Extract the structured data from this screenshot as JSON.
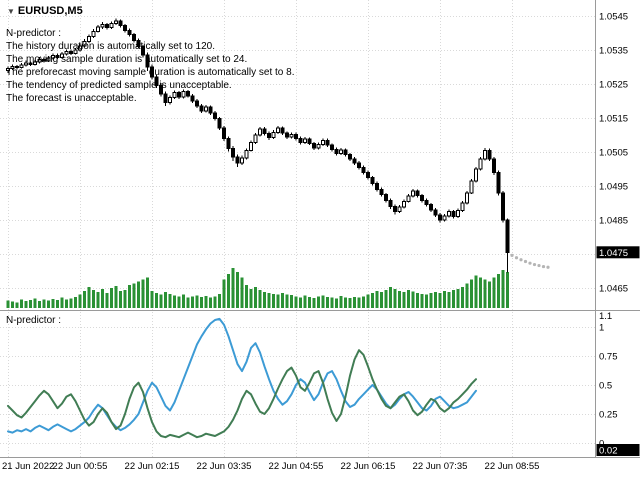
{
  "window": {
    "bg": "#ffffff"
  },
  "symbol": {
    "label": "EURUSD,M5",
    "dropdown_icon": "▼"
  },
  "comments": [
    "N-predictor :",
    "The history duration is automatically set to 120.",
    "The moving sample duration is automatically set to 24.",
    "The preforecast moving sample duration is automatically set to 8.",
    "The tendency of predicted sample is unacceptable.",
    "The forecast is unacceptable."
  ],
  "price_axis": {
    "labels": [
      "1.0545",
      "1.0535",
      "1.0525",
      "1.0515",
      "1.0505",
      "1.0495",
      "1.0485",
      "1.0465"
    ],
    "badge": "1.0475"
  },
  "time_axis": {
    "labels": [
      "21 Jun 2022",
      "22 Jun 00:55",
      "22 Jun 02:15",
      "22 Jun 03:35",
      "22 Jun 04:55",
      "22 Jun 06:15",
      "22 Jun 07:35",
      "22 Jun 08:55"
    ]
  },
  "indicator_panel": {
    "title": "N-predictor :",
    "scale_labels": [
      "1.1",
      "1",
      "0.75",
      "0.5",
      "0.25",
      "0"
    ],
    "badge": "0.02"
  },
  "colors": {
    "background": "#ffffff",
    "grid": "#d9d9d9",
    "candle_outline": "#000000",
    "bull_body": "#ffffff",
    "bear_body": "#000000",
    "volume": "#2a9134",
    "line_blue": "#3d9bd5",
    "line_green": "#417d54",
    "forecast_dot": "#b5b5b5",
    "badge_bg": "#000000",
    "badge_text": "#ffffff",
    "separator": "#9a9a9a",
    "text": "#000000"
  },
  "chart_data": [
    {
      "type": "candlestick",
      "title": "EURUSD,M5",
      "timeframe": "M5",
      "x_labels": [
        "21 Jun 2022",
        "22 Jun 00:55",
        "22 Jun 02:15",
        "22 Jun 03:35",
        "22 Jun 04:55",
        "22 Jun 06:15",
        "22 Jun 07:35",
        "22 Jun 08:55"
      ],
      "ylim": [
        1.046,
        1.055
      ],
      "yticks": [
        1.0545,
        1.0535,
        1.0525,
        1.0515,
        1.0505,
        1.0495,
        1.0485,
        1.0475,
        1.0465
      ],
      "current_price": 1.0475,
      "price_base": 1.04,
      "pip": 0.0001,
      "ohlc_pips": [
        [
          129.0,
          130.1,
          128.3,
          129.5
        ],
        [
          129.5,
          130.8,
          129.1,
          130.2
        ],
        [
          130.2,
          130.6,
          129.2,
          129.8
        ],
        [
          129.8,
          131.2,
          129.5,
          130.6
        ],
        [
          130.6,
          131.9,
          130.2,
          131.2
        ],
        [
          131.2,
          131.6,
          130.3,
          130.8
        ],
        [
          130.8,
          132.1,
          130.5,
          131.5
        ],
        [
          131.5,
          132.9,
          131.1,
          132.2
        ],
        [
          132.2,
          132.7,
          131.3,
          131.8
        ],
        [
          131.8,
          133.2,
          131.4,
          132.6
        ],
        [
          132.6,
          134.0,
          132.2,
          133.4
        ],
        [
          133.4,
          133.9,
          132.3,
          132.8
        ],
        [
          132.8,
          134.4,
          132.5,
          133.8
        ],
        [
          133.8,
          135.2,
          133.4,
          134.6
        ],
        [
          134.6,
          135.1,
          133.5,
          134.0
        ],
        [
          134.0,
          135.6,
          133.7,
          135.0
        ],
        [
          135.0,
          136.8,
          134.6,
          136.2
        ],
        [
          136.2,
          138.2,
          135.9,
          137.5
        ],
        [
          137.5,
          139.6,
          137.1,
          139.0
        ],
        [
          139.0,
          141.2,
          138.6,
          140.5
        ],
        [
          140.5,
          142.4,
          140.1,
          141.8
        ],
        [
          141.8,
          143.3,
          141.2,
          142.5
        ],
        [
          142.5,
          143.0,
          141.0,
          141.6
        ],
        [
          141.6,
          143.4,
          141.2,
          142.8
        ],
        [
          142.8,
          144.2,
          142.3,
          143.5
        ],
        [
          143.5,
          143.9,
          141.6,
          142.2
        ],
        [
          142.2,
          142.7,
          140.2,
          140.8
        ],
        [
          140.8,
          141.3,
          138.9,
          139.5
        ],
        [
          139.5,
          140.0,
          137.2,
          137.8
        ],
        [
          137.8,
          138.4,
          135.4,
          136.0
        ],
        [
          136.0,
          136.5,
          132.8,
          133.5
        ],
        [
          133.5,
          134.2,
          128.8,
          130.0
        ],
        [
          130.0,
          130.8,
          126.3,
          127.0
        ],
        [
          127.0,
          127.8,
          123.8,
          124.5
        ],
        [
          124.5,
          125.3,
          121.3,
          122.0
        ],
        [
          122.0,
          122.8,
          118.6,
          119.5
        ],
        [
          119.5,
          121.6,
          119.0,
          121.0
        ],
        [
          121.0,
          123.1,
          120.6,
          122.5
        ],
        [
          122.5,
          123.0,
          120.6,
          121.2
        ],
        [
          121.2,
          123.4,
          120.8,
          122.8
        ],
        [
          122.8,
          123.3,
          121.0,
          121.5
        ],
        [
          121.5,
          122.0,
          119.4,
          120.0
        ],
        [
          120.0,
          120.6,
          117.9,
          118.5
        ],
        [
          118.5,
          119.1,
          116.4,
          117.0
        ],
        [
          117.0,
          118.8,
          116.6,
          118.2
        ],
        [
          118.2,
          118.7,
          115.9,
          116.5
        ],
        [
          116.5,
          117.0,
          114.2,
          114.8
        ],
        [
          114.8,
          115.3,
          111.4,
          112.0
        ],
        [
          112.0,
          112.6,
          108.3,
          109.0
        ],
        [
          109.0,
          109.6,
          105.2,
          106.0
        ],
        [
          106.0,
          106.8,
          102.4,
          103.5
        ],
        [
          103.5,
          104.2,
          100.6,
          101.8
        ],
        [
          101.8,
          103.9,
          101.2,
          103.2
        ],
        [
          103.2,
          106.1,
          102.8,
          105.5
        ],
        [
          105.5,
          108.4,
          105.1,
          107.8
        ],
        [
          107.8,
          110.6,
          107.4,
          110.0
        ],
        [
          110.0,
          112.4,
          109.6,
          111.8
        ],
        [
          111.8,
          112.3,
          109.9,
          110.5
        ],
        [
          110.5,
          111.0,
          108.6,
          109.2
        ],
        [
          109.2,
          111.4,
          108.8,
          110.8
        ],
        [
          110.8,
          112.6,
          110.3,
          112.0
        ],
        [
          112.0,
          112.5,
          110.0,
          110.6
        ],
        [
          110.6,
          111.1,
          108.8,
          109.4
        ],
        [
          109.4,
          110.8,
          108.9,
          110.2
        ],
        [
          110.2,
          110.7,
          108.4,
          109.0
        ],
        [
          109.0,
          109.5,
          107.2,
          107.8
        ],
        [
          107.8,
          109.4,
          107.4,
          108.8
        ],
        [
          108.8,
          109.3,
          107.0,
          107.5
        ],
        [
          107.5,
          108.0,
          105.6,
          106.2
        ],
        [
          106.2,
          107.8,
          105.8,
          107.2
        ],
        [
          107.2,
          109.0,
          106.8,
          108.4
        ],
        [
          108.4,
          108.9,
          106.5,
          107.0
        ],
        [
          107.0,
          107.5,
          105.2,
          105.8
        ],
        [
          105.8,
          106.3,
          103.9,
          104.5
        ],
        [
          104.5,
          106.2,
          104.1,
          105.6
        ],
        [
          105.6,
          106.1,
          103.7,
          104.2
        ],
        [
          104.2,
          104.7,
          102.4,
          103.0
        ],
        [
          103.0,
          103.5,
          101.2,
          101.8
        ],
        [
          101.8,
          102.3,
          99.9,
          100.5
        ],
        [
          100.5,
          101.0,
          98.4,
          99.0
        ],
        [
          99.0,
          99.5,
          96.9,
          97.5
        ],
        [
          97.5,
          98.0,
          95.2,
          95.8
        ],
        [
          95.8,
          96.3,
          93.4,
          94.0
        ],
        [
          94.0,
          94.5,
          91.9,
          92.5
        ],
        [
          92.5,
          93.0,
          90.2,
          90.8
        ],
        [
          90.8,
          91.3,
          88.3,
          89.0
        ],
        [
          89.0,
          89.5,
          86.6,
          87.5
        ],
        [
          87.5,
          89.4,
          87.0,
          88.8
        ],
        [
          88.8,
          91.1,
          88.4,
          90.5
        ],
        [
          90.5,
          92.6,
          90.1,
          92.0
        ],
        [
          92.0,
          94.1,
          91.6,
          93.5
        ],
        [
          93.5,
          94.0,
          91.6,
          92.2
        ],
        [
          92.2,
          92.7,
          90.2,
          90.8
        ],
        [
          90.8,
          91.3,
          88.9,
          89.5
        ],
        [
          89.5,
          90.0,
          87.4,
          88.0
        ],
        [
          88.0,
          88.5,
          85.9,
          86.5
        ],
        [
          86.5,
          87.0,
          84.3,
          85.0
        ],
        [
          85.0,
          86.8,
          84.6,
          86.2
        ],
        [
          86.2,
          88.1,
          85.8,
          87.5
        ],
        [
          87.5,
          88.0,
          85.4,
          86.0
        ],
        [
          86.0,
          88.4,
          85.6,
          87.8
        ],
        [
          87.8,
          90.6,
          87.4,
          90.0
        ],
        [
          90.0,
          93.6,
          89.6,
          93.0
        ],
        [
          93.0,
          97.1,
          92.6,
          96.5
        ],
        [
          96.5,
          100.6,
          96.1,
          100.0
        ],
        [
          100.0,
          103.6,
          99.6,
          103.0
        ],
        [
          103.0,
          106.2,
          102.5,
          105.5
        ],
        [
          105.5,
          106.0,
          102.4,
          103.0
        ],
        [
          103.0,
          103.5,
          98.3,
          99.0
        ],
        [
          99.0,
          99.5,
          92.2,
          93.0
        ],
        [
          93.0,
          93.5,
          84.2,
          85.0
        ],
        [
          85.0,
          85.5,
          69.5,
          75.5
        ]
      ],
      "volume": [
        40,
        35,
        30,
        45,
        38,
        42,
        50,
        36,
        44,
        40,
        48,
        42,
        55,
        46,
        50,
        58,
        70,
        90,
        110,
        95,
        85,
        100,
        80,
        105,
        115,
        90,
        95,
        120,
        130,
        140,
        150,
        160,
        90,
        80,
        70,
        85,
        75,
        65,
        60,
        70,
        55,
        60,
        65,
        58,
        62,
        55,
        60,
        75,
        150,
        180,
        210,
        190,
        160,
        120,
        100,
        110,
        95,
        85,
        80,
        75,
        70,
        78,
        72,
        68,
        60,
        55,
        65,
        58,
        52,
        60,
        66,
        58,
        54,
        50,
        62,
        56,
        52,
        58,
        54,
        60,
        70,
        80,
        90,
        85,
        95,
        110,
        100,
        90,
        85,
        95,
        88,
        80,
        75,
        70,
        78,
        85,
        80,
        90,
        85,
        95,
        100,
        110,
        130,
        150,
        170,
        160,
        150,
        140,
        160,
        180,
        200,
        190
      ],
      "forecast_pips": [
        74.6,
        73.9,
        73.3,
        72.8,
        72.3,
        71.9,
        71.6,
        71.3,
        71.1
      ]
    },
    {
      "type": "line",
      "title": "N-predictor",
      "ylim": [
        0,
        1.1
      ],
      "yticks": [
        1.1,
        1,
        0.75,
        0.5,
        0.25,
        0
      ],
      "series": [
        {
          "name": "line-blue",
          "color": "#3d9bd5",
          "values": [
            0.1,
            0.09,
            0.11,
            0.1,
            0.12,
            0.1,
            0.13,
            0.15,
            0.13,
            0.11,
            0.14,
            0.16,
            0.14,
            0.12,
            0.1,
            0.12,
            0.15,
            0.18,
            0.22,
            0.28,
            0.33,
            0.3,
            0.24,
            0.18,
            0.14,
            0.11,
            0.13,
            0.16,
            0.2,
            0.25,
            0.35,
            0.45,
            0.52,
            0.48,
            0.4,
            0.32,
            0.28,
            0.35,
            0.45,
            0.55,
            0.65,
            0.75,
            0.85,
            0.92,
            0.98,
            1.03,
            1.06,
            1.07,
            1.02,
            0.92,
            0.8,
            0.68,
            0.62,
            0.7,
            0.82,
            0.86,
            0.78,
            0.66,
            0.55,
            0.45,
            0.38,
            0.33,
            0.36,
            0.42,
            0.5,
            0.55,
            0.52,
            0.44,
            0.37,
            0.42,
            0.52,
            0.6,
            0.62,
            0.55,
            0.45,
            0.36,
            0.31,
            0.33,
            0.38,
            0.42,
            0.46,
            0.5,
            0.46,
            0.4,
            0.34,
            0.3,
            0.33,
            0.38,
            0.42,
            0.44,
            0.4,
            0.35,
            0.3,
            0.28,
            0.32,
            0.38,
            0.4,
            0.36,
            0.32,
            0.3,
            0.31,
            0.33,
            0.35,
            0.4,
            0.45
          ]
        },
        {
          "name": "line-green",
          "color": "#417d54",
          "values": [
            0.32,
            0.28,
            0.24,
            0.22,
            0.26,
            0.31,
            0.36,
            0.41,
            0.45,
            0.42,
            0.36,
            0.3,
            0.34,
            0.4,
            0.42,
            0.36,
            0.28,
            0.2,
            0.15,
            0.18,
            0.25,
            0.3,
            0.26,
            0.18,
            0.12,
            0.15,
            0.25,
            0.38,
            0.48,
            0.52,
            0.44,
            0.3,
            0.18,
            0.1,
            0.06,
            0.05,
            0.07,
            0.06,
            0.05,
            0.07,
            0.09,
            0.07,
            0.05,
            0.06,
            0.08,
            0.07,
            0.06,
            0.08,
            0.1,
            0.14,
            0.2,
            0.28,
            0.38,
            0.45,
            0.42,
            0.34,
            0.27,
            0.25,
            0.3,
            0.38,
            0.47,
            0.55,
            0.62,
            0.65,
            0.58,
            0.48,
            0.45,
            0.52,
            0.6,
            0.62,
            0.52,
            0.38,
            0.26,
            0.19,
            0.25,
            0.4,
            0.58,
            0.72,
            0.8,
            0.76,
            0.66,
            0.55,
            0.46,
            0.38,
            0.32,
            0.3,
            0.35,
            0.4,
            0.42,
            0.36,
            0.28,
            0.24,
            0.27,
            0.33,
            0.38,
            0.36,
            0.3,
            0.27,
            0.3,
            0.35,
            0.38,
            0.42,
            0.46,
            0.51,
            0.55
          ]
        }
      ]
    }
  ]
}
